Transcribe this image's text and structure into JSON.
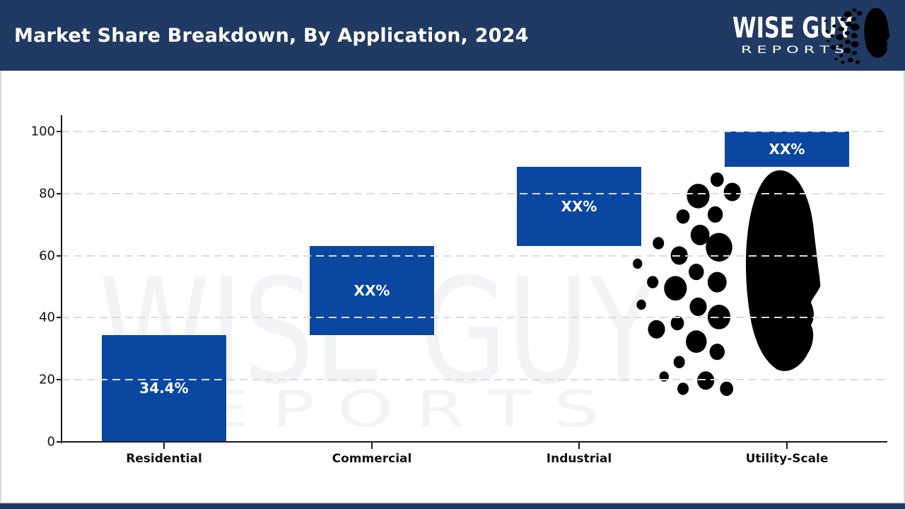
{
  "header": {
    "title": "Market Share Breakdown, By Application, 2024",
    "logo": {
      "line1": "WISE GUY",
      "line2": "R E P O R T S"
    }
  },
  "watermark": {
    "line1": "WISE GUY",
    "line2": "R E P O R T S"
  },
  "chart_data": {
    "type": "bar",
    "subtype": "waterfall",
    "title": "Market Share Breakdown, By Application, 2024",
    "categories": [
      "Residential",
      "Commercial",
      "Industrial",
      "Utility-Scale"
    ],
    "segments": [
      {
        "category": "Residential",
        "start": 0,
        "end": 34.4,
        "label": "34.4%"
      },
      {
        "category": "Commercial",
        "start": 34.4,
        "end": 63.0,
        "label": "XX%"
      },
      {
        "category": "Industrial",
        "start": 63.0,
        "end": 88.6,
        "label": "XX%"
      },
      {
        "category": "Utility-Scale",
        "start": 88.6,
        "end": 100.0,
        "label": "XX%"
      }
    ],
    "yticks": [
      0,
      20,
      40,
      60,
      80,
      100
    ],
    "ylim": [
      0,
      105
    ],
    "grid": true,
    "legend": null,
    "xlabel": "",
    "ylabel": ""
  },
  "colors": {
    "header-bg": "#213a64",
    "bar": "#0a47a1",
    "bar-label": "#ffffff",
    "grid-line": "#dcdcdc",
    "axis": "#1a1a1a",
    "tick-text": "#111111",
    "watermark": "#f2f3f5",
    "logo-text": "#ffffff",
    "page-bg": "#ffffff",
    "edge-border": "#d9d9d9"
  }
}
